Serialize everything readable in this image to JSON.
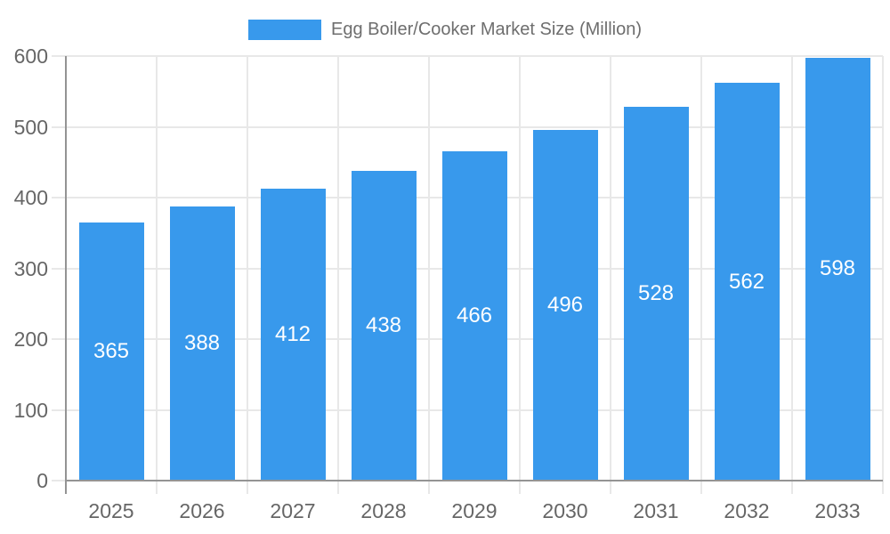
{
  "chart_data": {
    "type": "bar",
    "title": "Egg Boiler/Cooker Market Size (Million)",
    "legend": {
      "label": "Egg Boiler/Cooker Market Size (Million)",
      "position": "top"
    },
    "categories": [
      "2025",
      "2026",
      "2027",
      "2028",
      "2029",
      "2030",
      "2031",
      "2032",
      "2033"
    ],
    "values": [
      365,
      388,
      412,
      438,
      466,
      496,
      528,
      562,
      598
    ],
    "xlabel": "",
    "ylabel": "",
    "ylim": [
      0,
      600
    ],
    "yticks": [
      0,
      100,
      200,
      300,
      400,
      500,
      600
    ],
    "grid": true,
    "bar_color": "#3899EC",
    "value_label_color": "#FFFFFF"
  },
  "colors": {
    "background": "#FFFFFF",
    "grid_line": "#E8E8E8",
    "axis_line": "#949494",
    "tick_text": "#666666",
    "legend_text": "#6E6E6E"
  }
}
